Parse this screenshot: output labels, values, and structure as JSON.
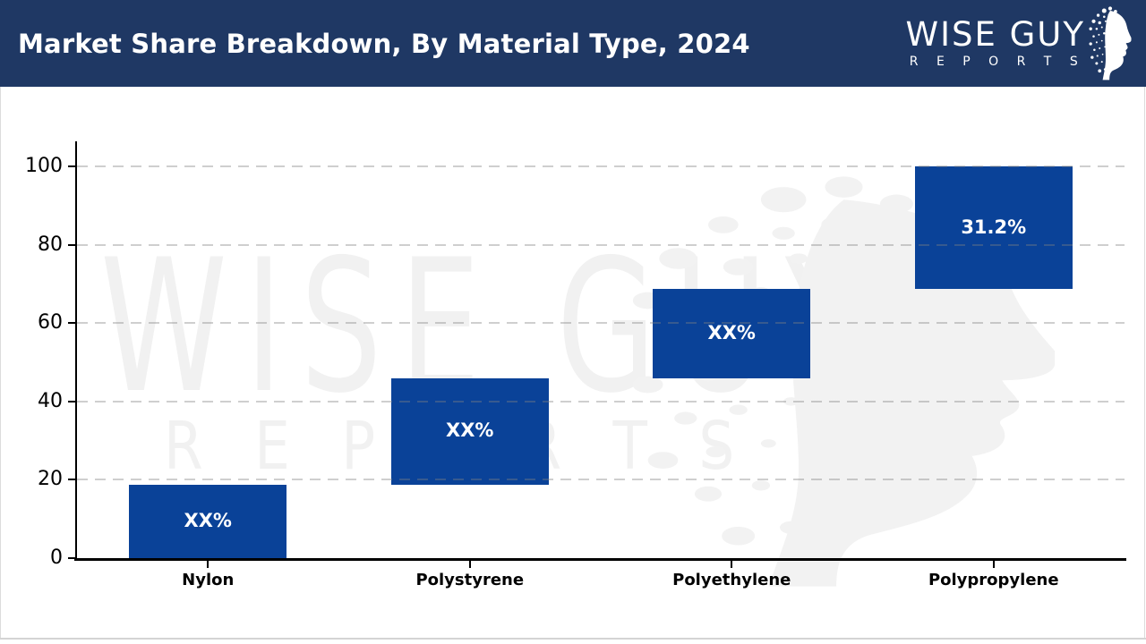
{
  "header": {
    "title": "Market Share Breakdown, By Material Type, 2024",
    "bg_color": "#1F3864",
    "logo": {
      "line1": "WISE GUY",
      "line2": "R E P O R T S"
    }
  },
  "watermark": {
    "line1": "WISE GUY",
    "line2": "R E P O R T S"
  },
  "chart_data": {
    "type": "bar",
    "subtype": "floating-waterfall",
    "title": "Market Share Breakdown, By Material Type, 2024",
    "categories": [
      "Nylon",
      "Polystyrene",
      "Polyethylene",
      "Polypropylene"
    ],
    "segments": [
      {
        "category": "Nylon",
        "start": 0,
        "end": 18.8,
        "label": "XX%"
      },
      {
        "category": "Polystyrene",
        "start": 18.8,
        "end": 46.0,
        "label": "XX%"
      },
      {
        "category": "Polyethylene",
        "start": 46.0,
        "end": 68.8,
        "label": "XX%"
      },
      {
        "category": "Polypropylene",
        "start": 68.8,
        "end": 100,
        "label": "31.2%"
      }
    ],
    "yticks": [
      0,
      20,
      40,
      60,
      80,
      100
    ],
    "ylim": [
      0,
      106
    ],
    "xlabel": "",
    "ylabel": "",
    "legend": "none",
    "grid": "horizontal-dashed",
    "bar_color": "#0A4298",
    "bar_label_color": "#FFFFFF",
    "gridline_color": "rgba(128,128,128,0.38)",
    "axis_color": "#000000",
    "tick_label_color": "#000000"
  }
}
